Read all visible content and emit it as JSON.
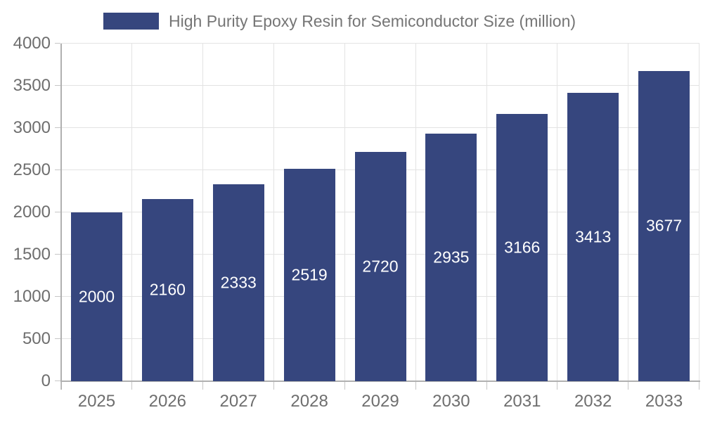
{
  "chart_data": {
    "type": "bar",
    "title": "High Purity Epoxy Resin for Semiconductor Size (million)",
    "legend_entries": [
      "High Purity Epoxy Resin for Semiconductor Size (million)"
    ],
    "legend_position": "top",
    "categories": [
      "2025",
      "2026",
      "2027",
      "2028",
      "2029",
      "2030",
      "2031",
      "2032",
      "2033"
    ],
    "values": [
      2000,
      2160,
      2333,
      2519,
      2720,
      2935,
      3166,
      3413,
      3677
    ],
    "data_labels": [
      "2000",
      "2160",
      "2333",
      "2519",
      "2720",
      "2935",
      "3166",
      "3413",
      "3677"
    ],
    "xlabel": "",
    "ylabel": "",
    "ylim": [
      0,
      4000
    ],
    "ytick_step": 500,
    "yticks": [
      0,
      500,
      1000,
      1500,
      2000,
      2500,
      3000,
      3500,
      4000
    ],
    "grid": true
  },
  "colors": {
    "bar_fill": "#36467E",
    "bar_label_text": "#ffffff",
    "legend_text": "#757575",
    "tick_label_text": "#6e6e6e",
    "gridline": "#e3e3e3",
    "axis_line": "#b0b0b0",
    "background": "#ffffff"
  }
}
